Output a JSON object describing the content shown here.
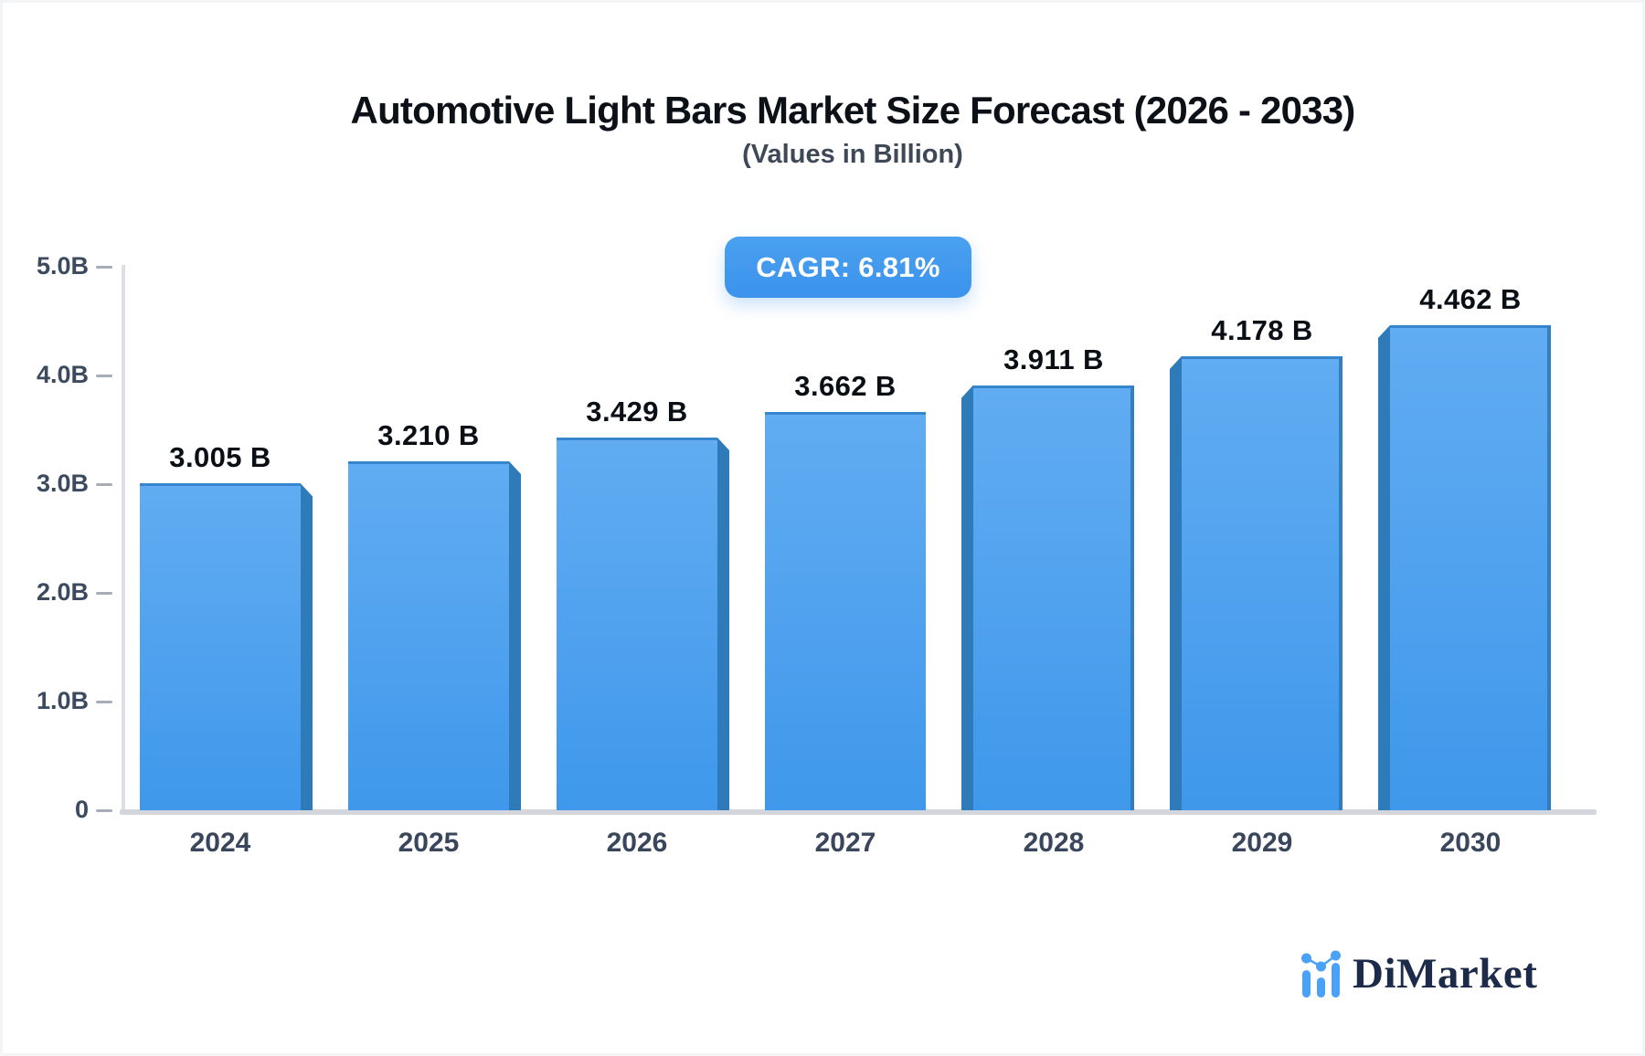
{
  "header": {
    "title": "Automotive Light Bars Market Size Forecast (2026 - 2033)",
    "subtitle": "(Values in Billion)",
    "cagr_badge": "CAGR: 6.81%"
  },
  "chart_data": {
    "type": "bar",
    "title": "Automotive Light Bars Market Size Forecast (2026 - 2033)",
    "subtitle": "(Values in Billion)",
    "cagr_percent": 6.81,
    "unit": "Billion",
    "categories": [
      "2024",
      "2025",
      "2026",
      "2027",
      "2028",
      "2029",
      "2030"
    ],
    "values": [
      3.005,
      3.21,
      3.429,
      3.662,
      3.911,
      4.178,
      4.462
    ],
    "bar_labels": [
      "3.005 B",
      "3.210 B",
      "3.429 B",
      "3.662 B",
      "3.911 B",
      "4.178 B",
      "4.462 B"
    ],
    "ylim": [
      0,
      5
    ],
    "y_ticks": [
      {
        "value": 5,
        "label": "5.0B"
      },
      {
        "value": 4,
        "label": "4.0B"
      },
      {
        "value": 3,
        "label": "3.0B"
      },
      {
        "value": 2,
        "label": "2.0B"
      },
      {
        "value": 1,
        "label": "1.0B"
      },
      {
        "value": 0,
        "label": "0"
      }
    ],
    "grid": false,
    "legend": false,
    "colors": {
      "bar_top": "#61acf2",
      "bar_bottom": "#3f98eb",
      "bar_side": "#2f7ab8",
      "axis_line": "#dcdfe4",
      "baseline": "#d3d6dc",
      "tick_dash": "#a7adb8",
      "y_label": "#3b4a5e",
      "x_label": "#3a465c",
      "value_label": "#0a0f16",
      "badge_bg": "#3f97ed",
      "badge_text": "#ffffff",
      "brand_text": "#1b2b49",
      "brand_icon": "#4aa2f7"
    }
  },
  "footer": {
    "brand": "DiMarket"
  }
}
